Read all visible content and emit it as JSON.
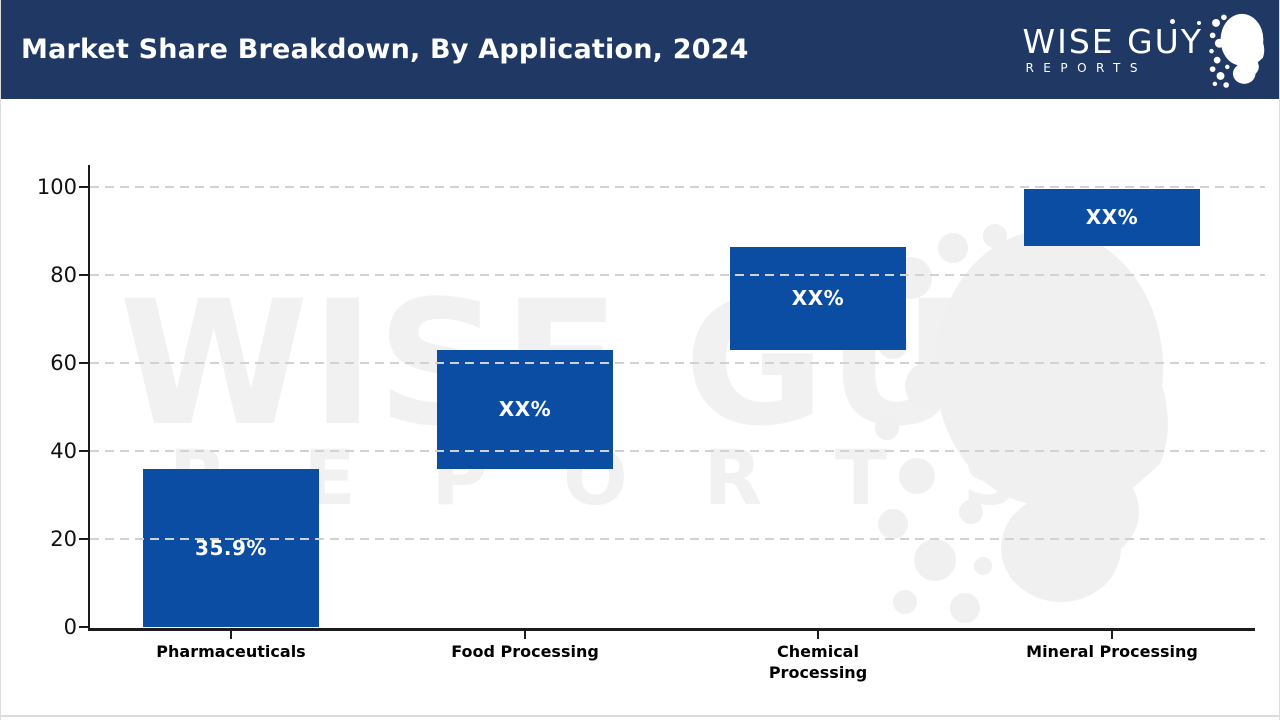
{
  "header": {
    "title": "Market Share Breakdown, By Application, 2024",
    "logo": {
      "line1": "WISE GUY",
      "line2": "REPORTS"
    }
  },
  "watermark": {
    "line1": "WISE GUY",
    "line2": "REPORTS"
  },
  "chart_data": {
    "type": "bar",
    "subtype": "waterfall",
    "title": "Market Share Breakdown, By Application, 2024",
    "categories": [
      {
        "label": "Pharmaceuticals",
        "two_line": false
      },
      {
        "label": "Food Processing",
        "two_line": false
      },
      {
        "label": "Chemical Processing",
        "two_line": true
      },
      {
        "label": "Mineral Processing",
        "two_line": false
      }
    ],
    "segments": [
      {
        "category": "Pharmaceuticals",
        "start": 0,
        "end": 35.9,
        "label": "35.9%"
      },
      {
        "category": "Food Processing",
        "start": 35.9,
        "end": 63.0,
        "label": "XX%"
      },
      {
        "category": "Chemical Processing",
        "start": 63.0,
        "end": 86.4,
        "label": "XX%"
      },
      {
        "category": "Mineral Processing",
        "start": 86.6,
        "end": 99.6,
        "label": "XX%"
      }
    ],
    "yticks": [
      0,
      20,
      40,
      60,
      80,
      100
    ],
    "ylim": [
      0,
      105
    ],
    "xlabel": "",
    "ylabel": "",
    "grid": "dashed-horizontal",
    "legend": "none",
    "bar_color": "#0b4da2",
    "bar_label_color": "#ffffff"
  },
  "colors": {
    "header_bg": "#1f3864",
    "bar": "#0b4da2",
    "watermark": "#f1f1f1",
    "grid": "#d2d2d2",
    "axis": "#1c1c1c"
  }
}
